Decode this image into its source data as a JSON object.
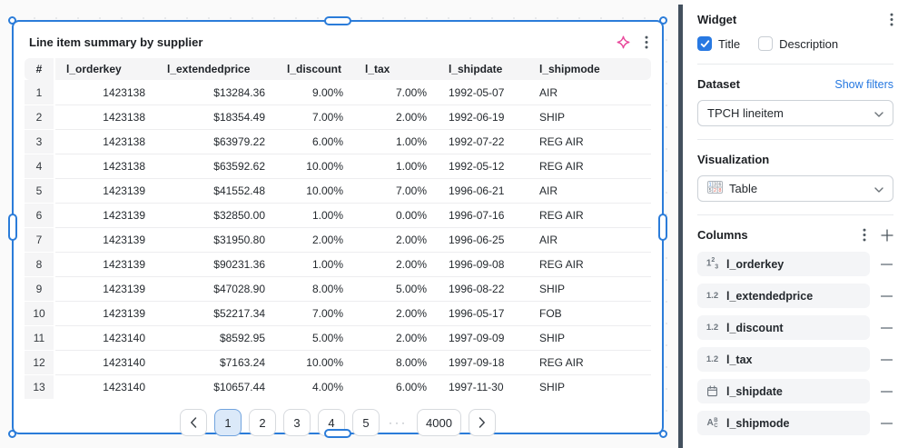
{
  "colors": {
    "selection_accent": "#2b7cd9",
    "checkbox_blue": "#2879e2",
    "link_blue": "#2477e0",
    "canvas_bg": "#fafafa",
    "table_header_bg": "#f5f5f6",
    "active_page_bg": "#dbe9f9",
    "panel_divider": "#43505e",
    "sparkle_pink": "#e9489b",
    "sparkle_purple": "#7c5cf0"
  },
  "widget": {
    "title": "Line item summary by supplier",
    "header_icons": [
      "sparkle-ai-icon",
      "kebab-menu-icon"
    ],
    "table": {
      "columns": [
        {
          "label": "#",
          "align": "center"
        },
        {
          "label": "l_orderkey",
          "align": "right"
        },
        {
          "label": "l_extendedprice",
          "align": "right"
        },
        {
          "label": "l_discount",
          "align": "right"
        },
        {
          "label": "l_tax",
          "align": "right"
        },
        {
          "label": "l_shipdate",
          "align": "left"
        },
        {
          "label": "l_shipmode",
          "align": "left"
        }
      ],
      "rows": [
        [
          "1",
          "1423138",
          "$13284.36",
          "9.00%",
          "7.00%",
          "1992-05-07",
          "AIR"
        ],
        [
          "2",
          "1423138",
          "$18354.49",
          "7.00%",
          "2.00%",
          "1992-06-19",
          "SHIP"
        ],
        [
          "3",
          "1423138",
          "$63979.22",
          "6.00%",
          "1.00%",
          "1992-07-22",
          "REG AIR"
        ],
        [
          "4",
          "1423138",
          "$63592.62",
          "10.00%",
          "1.00%",
          "1992-05-12",
          "REG AIR"
        ],
        [
          "5",
          "1423139",
          "$41552.48",
          "10.00%",
          "7.00%",
          "1996-06-21",
          "AIR"
        ],
        [
          "6",
          "1423139",
          "$32850.00",
          "1.00%",
          "0.00%",
          "1996-07-16",
          "REG AIR"
        ],
        [
          "7",
          "1423139",
          "$31950.80",
          "2.00%",
          "2.00%",
          "1996-06-25",
          "AIR"
        ],
        [
          "8",
          "1423139",
          "$90231.36",
          "1.00%",
          "2.00%",
          "1996-09-08",
          "REG AIR"
        ],
        [
          "9",
          "1423139",
          "$47028.90",
          "8.00%",
          "5.00%",
          "1996-08-22",
          "SHIP"
        ],
        [
          "10",
          "1423139",
          "$52217.34",
          "7.00%",
          "2.00%",
          "1996-05-17",
          "FOB"
        ],
        [
          "11",
          "1423140",
          "$8592.95",
          "5.00%",
          "2.00%",
          "1997-09-09",
          "SHIP"
        ],
        [
          "12",
          "1423140",
          "$7163.24",
          "10.00%",
          "8.00%",
          "1997-09-18",
          "REG AIR"
        ],
        [
          "13",
          "1423140",
          "$10657.44",
          "4.00%",
          "6.00%",
          "1997-11-30",
          "SHIP"
        ]
      ]
    },
    "pagination": {
      "current": "1",
      "pages": [
        "1",
        "2",
        "3",
        "4",
        "5"
      ],
      "ellipsis": "···",
      "last_page": "4000",
      "prev_icon": "chevron-left-icon",
      "next_icon": "chevron-right-icon"
    }
  },
  "sidebar": {
    "widget_section": {
      "heading": "Widget",
      "menu_icon": "kebab-menu-icon",
      "title_checkbox": {
        "label": "Title",
        "checked": true
      },
      "description_checkbox": {
        "label": "Description",
        "checked": false
      }
    },
    "dataset_section": {
      "heading": "Dataset",
      "link": "Show filters",
      "selected": "TPCH lineitem",
      "dropdown_icon": "chevron-down-icon"
    },
    "visualization_section": {
      "heading": "Visualization",
      "selected": "Table",
      "selected_icon": "table-viz-icon",
      "dropdown_icon": "chevron-down-icon"
    },
    "columns_section": {
      "heading": "Columns",
      "menu_icon": "kebab-menu-icon",
      "add_icon": "plus-icon",
      "remove_icon": "minus-icon",
      "items": [
        {
          "type": "integer",
          "name": "l_orderkey"
        },
        {
          "type": "decimal",
          "name": "l_extendedprice"
        },
        {
          "type": "decimal",
          "name": "l_discount"
        },
        {
          "type": "decimal",
          "name": "l_tax"
        },
        {
          "type": "date",
          "name": "l_shipdate"
        },
        {
          "type": "string",
          "name": "l_shipmode"
        }
      ]
    }
  }
}
